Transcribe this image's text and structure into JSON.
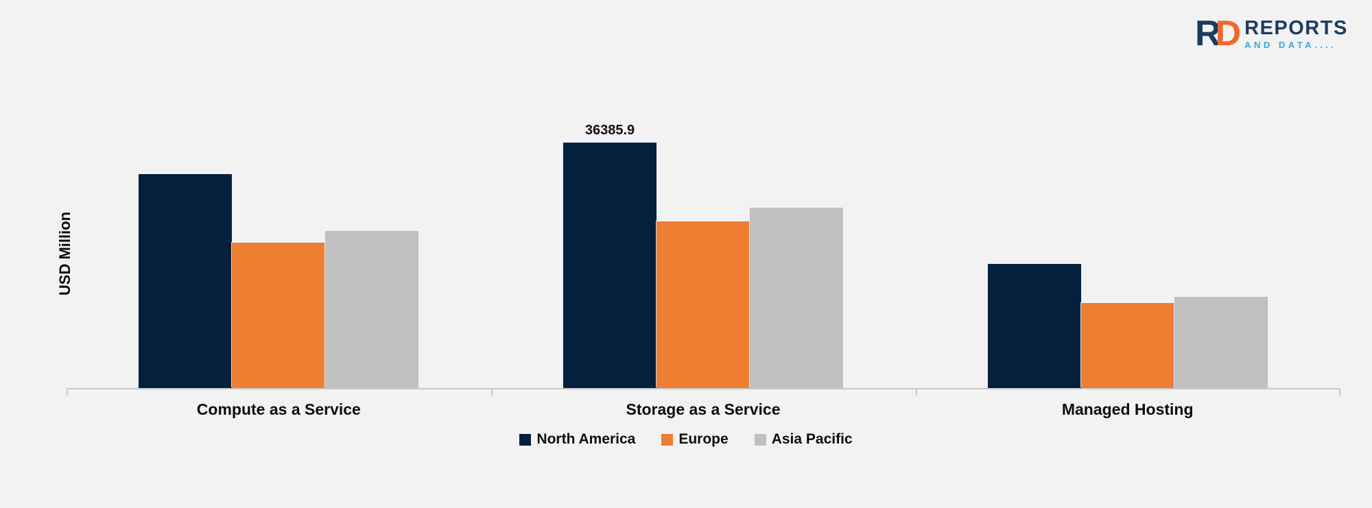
{
  "background_color": "#f2f2f2",
  "logo": {
    "monogram_r": "R",
    "monogram_d": "D",
    "line1": "REPORTS",
    "line2": "AND DATA....",
    "navy": "#1c3b5f",
    "blue": "#3aa9dc",
    "orange": "#f2682c"
  },
  "chart_data": {
    "type": "bar",
    "title": "",
    "xlabel": "",
    "ylabel": "USD Million",
    "categories": [
      "Compute as a Service",
      "Storage as a Service",
      "Managed Hosting"
    ],
    "series": [
      {
        "name": "North America",
        "color": "#04203d",
        "values": [
          31700,
          36385.9,
          18400
        ]
      },
      {
        "name": "Europe",
        "color": "#ee7e32",
        "values": [
          21550,
          24700,
          12600
        ]
      },
      {
        "name": "Asia Pacific",
        "color": "#c0c0c0",
        "values": [
          23280,
          26730,
          13520
        ]
      }
    ],
    "data_labels": [
      {
        "series_index": 0,
        "category_index": 1,
        "text": "36385.9"
      }
    ],
    "ylim": [
      0,
      42000
    ],
    "grid": false,
    "legend_position": "bottom",
    "axis_color": "#c9c9c9"
  }
}
